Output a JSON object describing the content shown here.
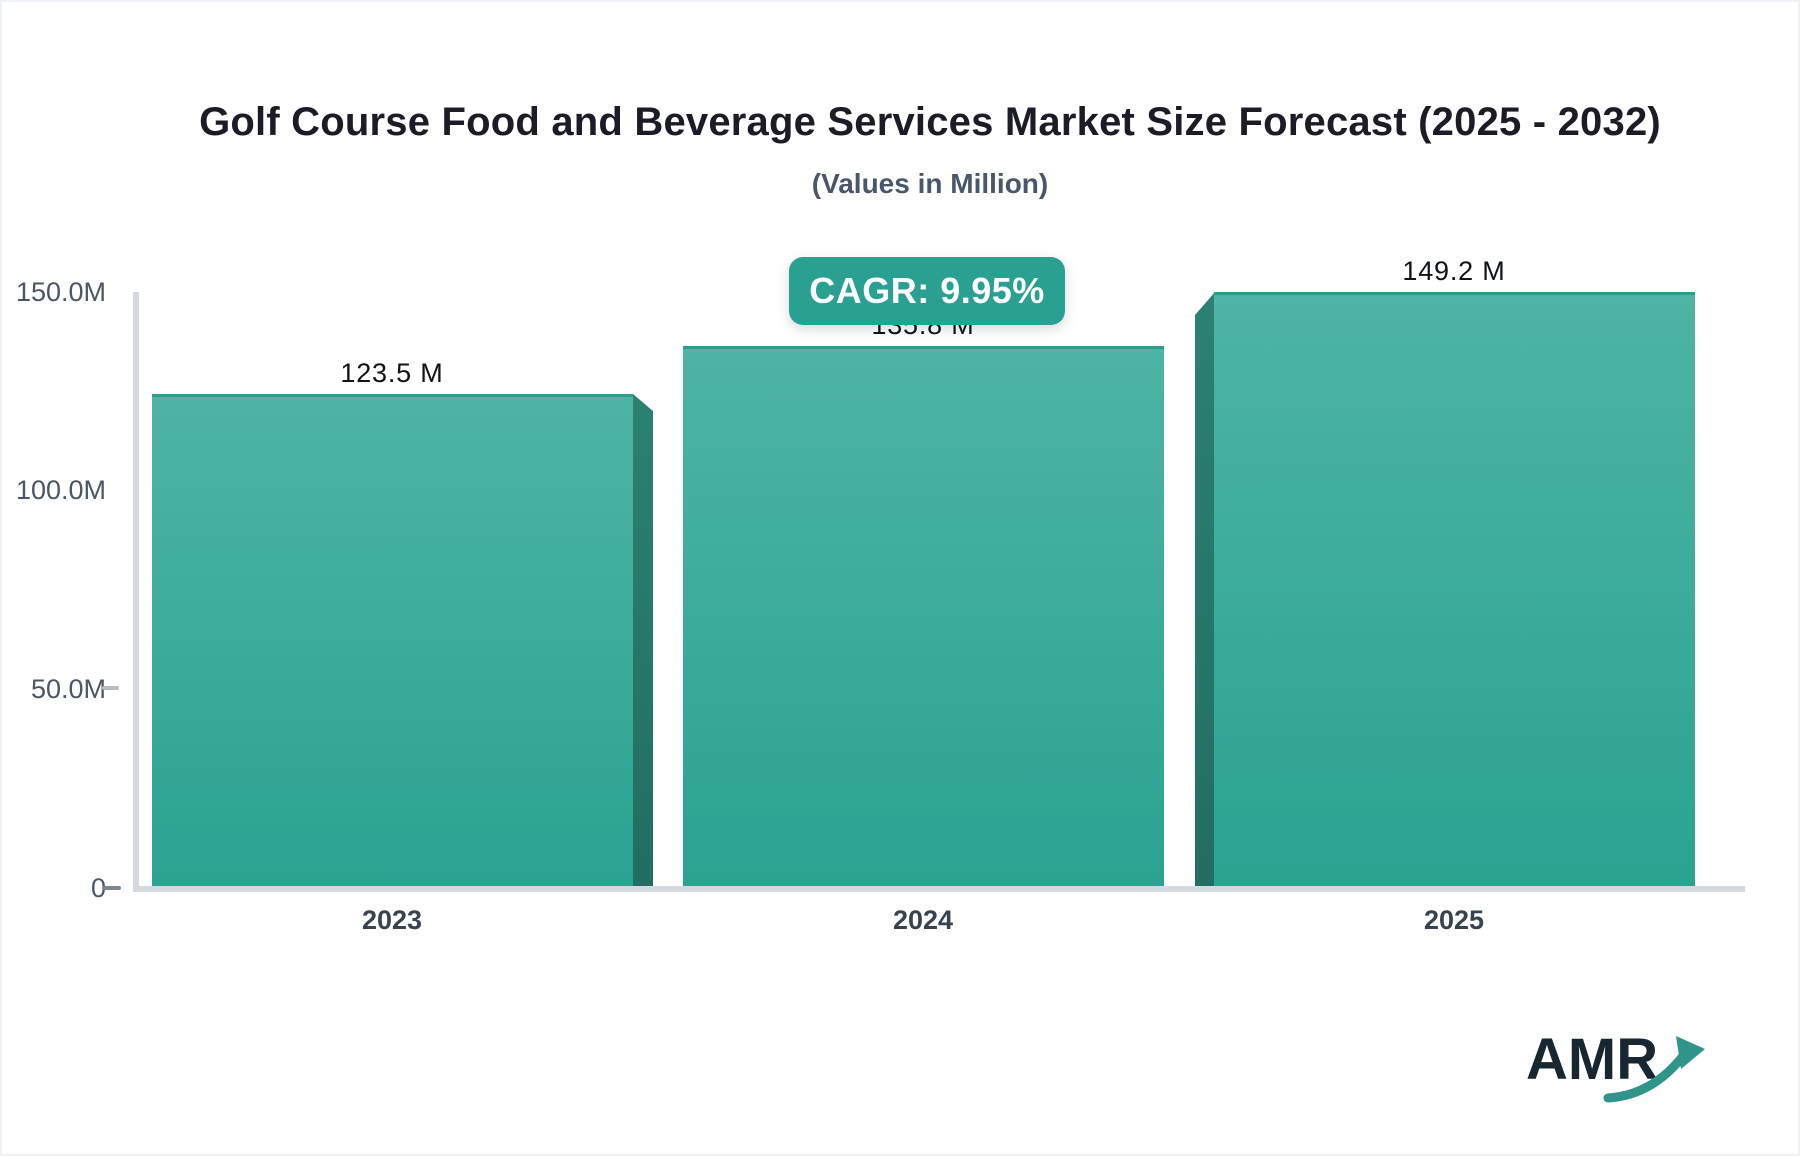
{
  "header": {
    "title": "Golf Course Food and Beverage Services Market Size Forecast (2025 - 2032)",
    "subtitle": "(Values in Million)"
  },
  "badge": {
    "label": "CAGR: 9.95%"
  },
  "logo": {
    "text": "AMR",
    "arrow_icon": "growth-arrow-icon",
    "arrow_color": "#2f948a",
    "text_color": "#182630"
  },
  "chart_data": {
    "type": "bar",
    "title": "Golf Course Food and Beverage Services Market Size Forecast (2025 - 2032)",
    "subtitle": "(Values in Million)",
    "unit": "Million",
    "categories": [
      "2023",
      "2024",
      "2025"
    ],
    "values": [
      123.5,
      135.8,
      149.2
    ],
    "value_labels": [
      "123.5 M",
      "135.8 M",
      "149.2 M"
    ],
    "cagr_label": "CAGR: 9.95%",
    "ylim": [
      0,
      150
    ],
    "ytick_labels_top_down": [
      "150.0M",
      "100.0M",
      "50.0M",
      "0"
    ],
    "grid": false,
    "legend": false,
    "colors": {
      "bar_gradient_top": "#4eb4a5",
      "bar_gradient_bottom": "#2aa392",
      "bar_side_face": "#27796b",
      "badge_background": "#2aa093",
      "axis_line": "#d6dae0",
      "title_text": "#1b1c26",
      "subtitle_text": "#4a576b",
      "value_label_text": "#101318",
      "tick_label_text": "#4d5666"
    }
  }
}
